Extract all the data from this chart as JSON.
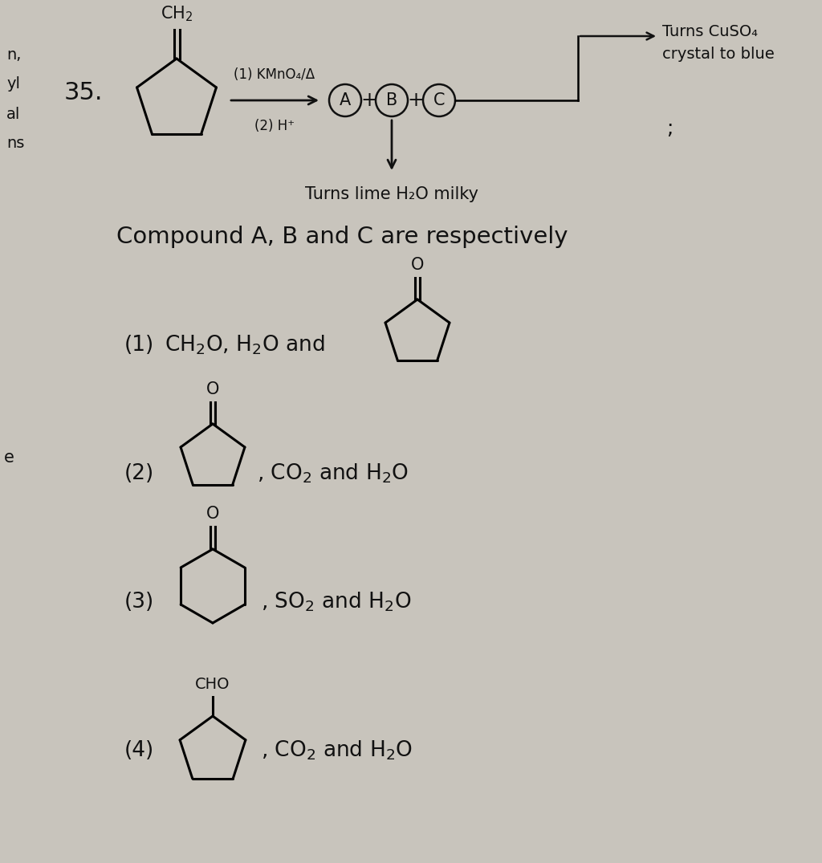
{
  "background_color": "#c8c4bc",
  "title_number": "35.",
  "question_text": "Compound A, B and C are respectively",
  "reaction_label1": "(1) KMnO₄/Δ",
  "reaction_label2": "(2) H⁺",
  "turns_cuso4": "Turns CuSO₄",
  "crystal_blue": "crystal to blue",
  "semicolon": ";",
  "turns_lime": "Turns lime H₂O milky",
  "left_margin_letters": [
    "n,",
    "yl",
    "al",
    "ns"
  ],
  "left_letter_e": "e",
  "font_size_main": 20,
  "font_size_option": 19,
  "font_size_small": 13,
  "text_color": "#111111"
}
